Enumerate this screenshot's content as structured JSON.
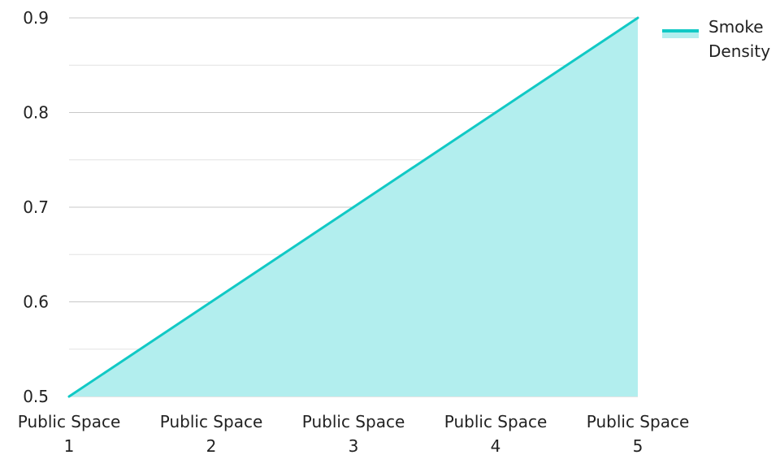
{
  "chart_data": {
    "type": "area",
    "title": "",
    "xlabel": "",
    "ylabel": "",
    "categories": [
      "Public Space 1",
      "Public Space 2",
      "Public Space 3",
      "Public Space 4",
      "Public Space 5"
    ],
    "category_label_lines": [
      [
        "Public Space",
        "1"
      ],
      [
        "Public Space",
        "2"
      ],
      [
        "Public Space",
        "3"
      ],
      [
        "Public Space",
        "4"
      ],
      [
        "Public Space",
        "5"
      ]
    ],
    "series": [
      {
        "name": "Smoke Density",
        "name_lines": [
          "Smoke",
          "Density"
        ],
        "values": [
          0.5,
          0.6,
          0.7,
          0.8,
          0.9
        ],
        "color": "#11c9c5",
        "fill_color": "#b2eeee"
      }
    ],
    "ylim": [
      0.5,
      0.9
    ],
    "y_ticks": [
      "0.5",
      "0.6",
      "0.7",
      "0.8",
      "0.9"
    ],
    "y_minor_ticks": [
      0.55,
      0.65,
      0.75,
      0.85
    ],
    "grid": true,
    "grid_color": "#c8c8c8",
    "legend_position": "top-right"
  }
}
